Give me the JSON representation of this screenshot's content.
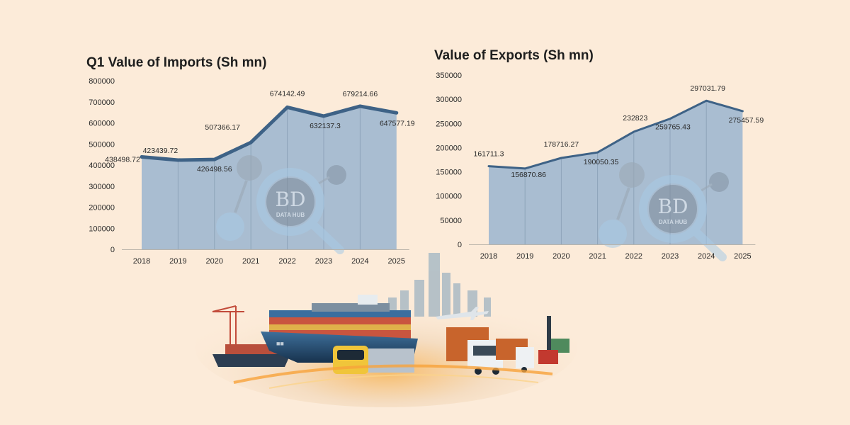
{
  "chart_data": [
    {
      "type": "area",
      "title": "Q1 Value of Imports (Sh mn)",
      "xlabel": "",
      "ylabel": "",
      "categories": [
        "2018",
        "2019",
        "2020",
        "2021",
        "2022",
        "2023",
        "2024",
        "2025"
      ],
      "values": [
        438498.72,
        423439.72,
        426498.56,
        507366.17,
        674142.49,
        632137.3,
        679214.66,
        647577.19
      ],
      "data_labels": [
        "438498.72",
        "423439.72",
        "426498.56",
        "507366.17",
        "674142.49",
        "632137.3",
        "679214.66",
        "647577.19"
      ],
      "ylim": [
        0,
        800000
      ],
      "yticks": [
        "0",
        "100000",
        "200000",
        "300000",
        "400000",
        "500000",
        "600000",
        "700000",
        "800000"
      ],
      "grid": false,
      "line_color": "#3e6286",
      "fill_color": "#a9bdd1"
    },
    {
      "type": "area",
      "title": "Value of Exports (Sh mn)",
      "xlabel": "",
      "ylabel": "",
      "categories": [
        "2018",
        "2019",
        "2020",
        "2021",
        "2022",
        "2023",
        "2024",
        "2025"
      ],
      "values": [
        161711.3,
        156870.86,
        178716.27,
        190050.35,
        232823,
        259765.43,
        297031.79,
        275457.59
      ],
      "data_labels": [
        "161711.3",
        "156870.86",
        "178716.27",
        "190050.35",
        "232823",
        "259765.43",
        "297031.79",
        "275457.59"
      ],
      "ylim": [
        0,
        350000
      ],
      "yticks": [
        "0",
        "50000",
        "100000",
        "150000",
        "200000",
        "250000",
        "300000",
        "350000"
      ],
      "grid": false,
      "line_color": "#3e6286",
      "fill_color": "#a9bdd1"
    }
  ],
  "watermark": {
    "logo_text": "BD",
    "sub_text": "DATA HUB"
  },
  "colors": {
    "background": "#fcebd9",
    "accent": "#3e6286"
  }
}
